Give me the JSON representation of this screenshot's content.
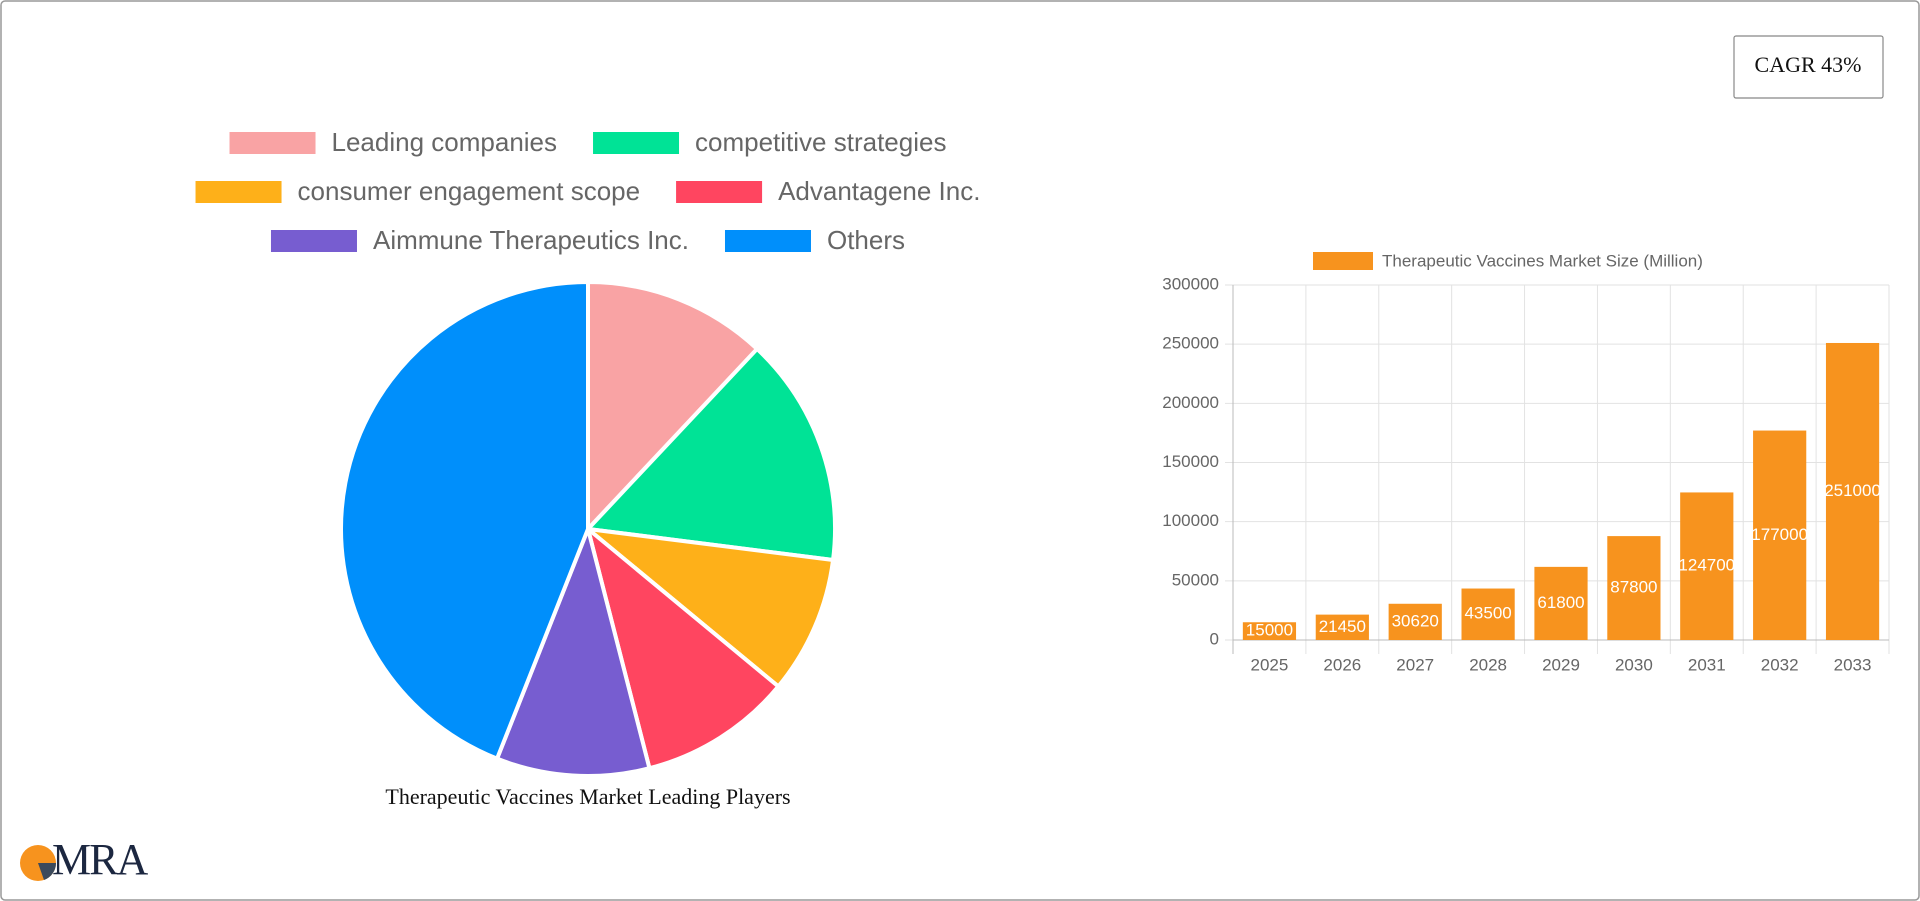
{
  "cagr": "CAGR 43%",
  "logo": "MRA",
  "chart_data": [
    {
      "type": "pie",
      "title": "Therapeutic Vaccines Market Leading Players",
      "categories": [
        "Leading companies",
        "competitive strategies",
        "consumer engagement scope",
        "Advantagene Inc.",
        "Aimmune Therapeutics Inc.",
        "Others"
      ],
      "values": [
        12,
        15,
        9,
        10,
        10,
        44
      ],
      "colors": [
        "#f9a3a4",
        "#00e396",
        "#feb019",
        "#ff4560",
        "#775dd0",
        "#008ffb"
      ],
      "legend": "top"
    },
    {
      "type": "bar",
      "categories": [
        "2025",
        "2026",
        "2027",
        "2028",
        "2029",
        "2030",
        "2031",
        "2032",
        "2033"
      ],
      "series": [
        {
          "name": "Therapeutic Vaccines Market Size (Million)",
          "color": "#f7931e",
          "values": [
            15000,
            21450,
            30620,
            43500,
            61800,
            87800,
            124700,
            177000,
            251000
          ]
        }
      ],
      "ylim": [
        0,
        300000
      ],
      "yticks": [
        0,
        50000,
        100000,
        150000,
        200000,
        250000,
        300000
      ],
      "grid": true,
      "legend": "top"
    }
  ]
}
